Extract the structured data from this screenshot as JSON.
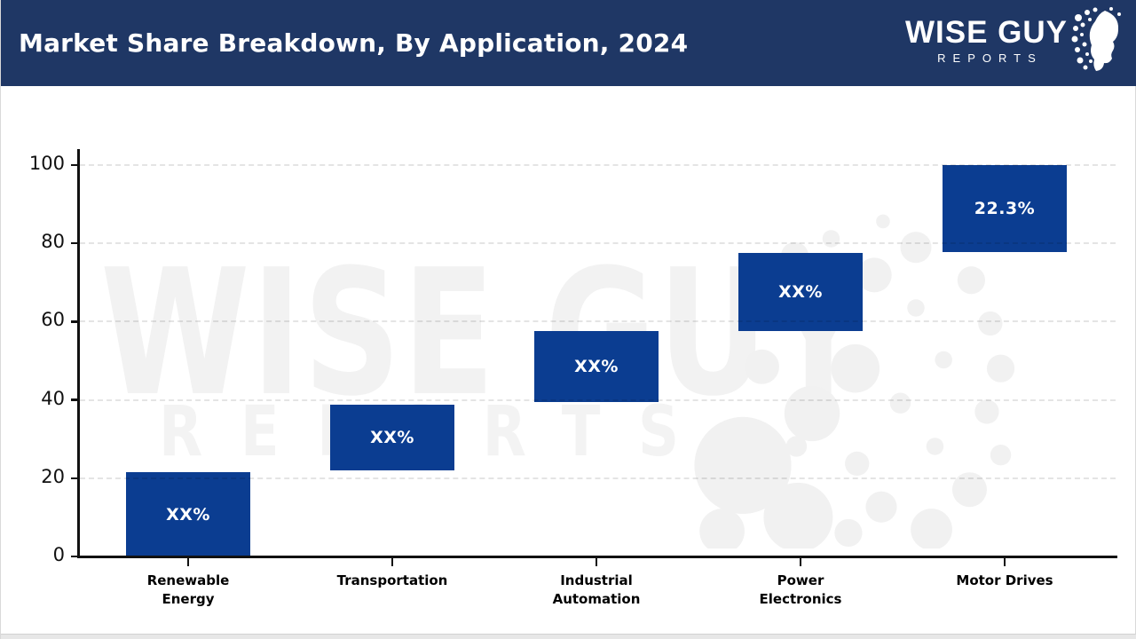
{
  "header": {
    "title": "Market Share Breakdown, By Application, 2024",
    "logo": {
      "line1": "WISE GUY",
      "line2": "REPORTS"
    }
  },
  "watermark": {
    "line1": "WISE GUY",
    "line2": "REPORTS"
  },
  "colors": {
    "header_bg": "#1f3765",
    "bar": "#0b3d91",
    "bar_label": "#ffffff",
    "axis": "#111111",
    "grid": "#e4e4e4",
    "watermark": "#f2f2f2"
  },
  "chart_data": {
    "type": "bar",
    "subtype": "floating-segment-waterfall",
    "title": "Market Share Breakdown, By Application, 2024",
    "xlabel": "",
    "ylabel": "",
    "categories": [
      "Renewable Energy",
      "Transportation",
      "Industrial Automation",
      "Power Electronics",
      "Motor Drives"
    ],
    "segments": [
      {
        "category": "Renewable Energy",
        "start": 0,
        "end": 21.5,
        "label": "XX%"
      },
      {
        "category": "Transportation",
        "start": 21.9,
        "end": 38.8,
        "label": "XX%"
      },
      {
        "category": "Industrial Automation",
        "start": 39.5,
        "end": 57.6,
        "label": "XX%"
      },
      {
        "category": "Power Electronics",
        "start": 57.6,
        "end": 77.6,
        "label": "XX%"
      },
      {
        "category": "Motor Drives",
        "start": 77.7,
        "end": 100,
        "label": "22.3%"
      }
    ],
    "yticks": [
      0,
      20,
      40,
      60,
      80,
      100
    ],
    "ylim": [
      0,
      104
    ],
    "grid": "dashed-horizontal",
    "legend": "none"
  }
}
